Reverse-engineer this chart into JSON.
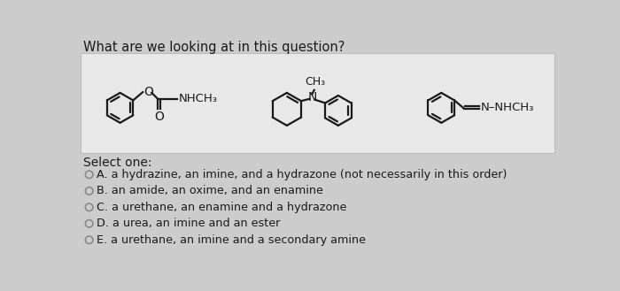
{
  "title": "What are we looking at in this question?",
  "title_fontsize": 10.5,
  "bg_color": "#cccccc",
  "box_fill": "#e8e8e8",
  "line_color": "#1a1a1a",
  "text_color": "#1a1a1a",
  "select_text": "Select one:",
  "options": [
    "A. a hydrazine, an imine, and a hydrazone (not necessarily in this order)",
    "B. an amide, an oxime, and an enamine",
    "C. a urethane, an enamine and a hydrazone",
    "D. a urea, an imine and an ester",
    "E. a urethane, an imine and a secondary amine"
  ]
}
